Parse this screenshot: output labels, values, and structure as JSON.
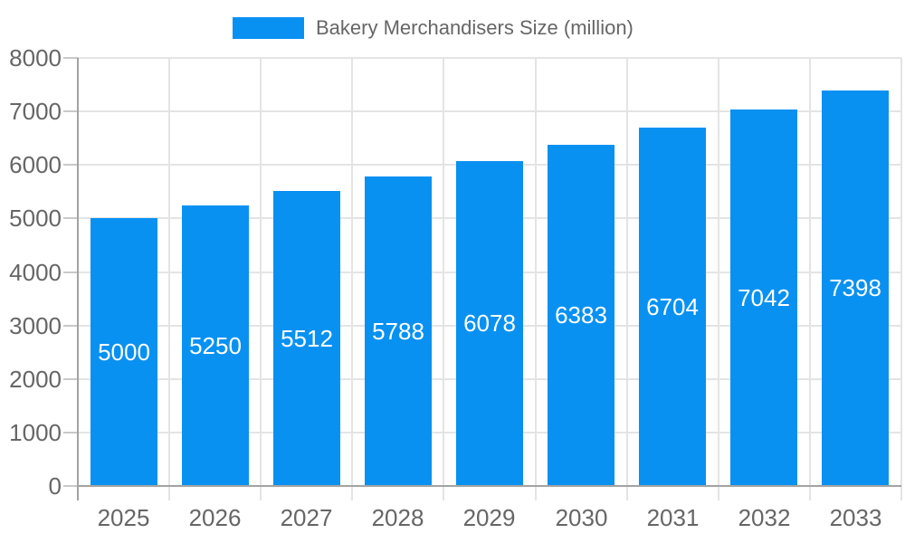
{
  "chart_data": {
    "type": "bar",
    "title": "Bakery Merchandisers Size (million)",
    "legend": {
      "label": "Bakery Merchandisers Size (million)",
      "position": "top-center"
    },
    "categories": [
      "2025",
      "2026",
      "2027",
      "2028",
      "2029",
      "2030",
      "2031",
      "2032",
      "2033"
    ],
    "series": [
      {
        "name": "Bakery Merchandisers Size (million)",
        "values": [
          5000,
          5250,
          5512,
          5788,
          6078,
          6383,
          6704,
          7042,
          7398
        ]
      }
    ],
    "bar_value_labels": [
      "5000",
      "5250",
      "5512",
      "5788",
      "6078",
      "6383",
      "6704",
      "7042",
      "7398"
    ],
    "xlabel": "",
    "ylabel": "",
    "ylim": [
      0,
      8000
    ],
    "ytick_step": 1000,
    "ytick_labels": [
      "0",
      "1000",
      "2000",
      "3000",
      "4000",
      "5000",
      "6000",
      "7000",
      "8000"
    ],
    "grid": true,
    "colors": {
      "bar": "#0991f2",
      "grid": "#e4e4e4",
      "axis": "#a3a3a3",
      "tick": "#c9c9c9",
      "text": "#666666",
      "bar_label": "#ffffff",
      "background": "#ffffff"
    }
  }
}
